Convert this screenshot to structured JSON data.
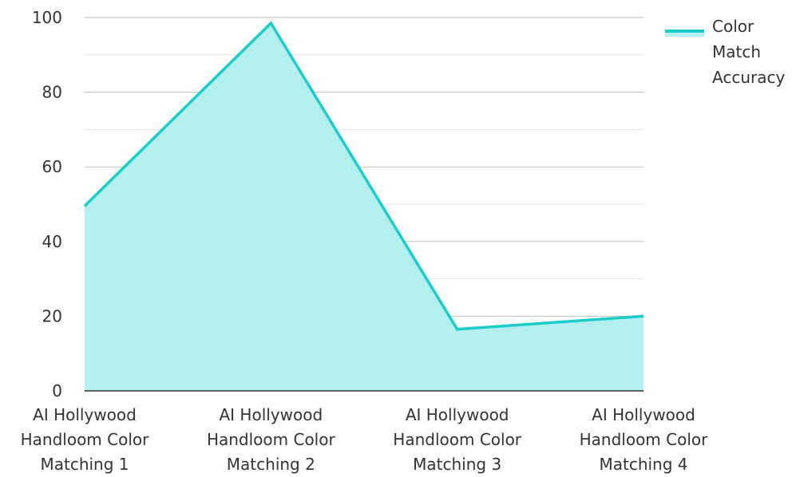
{
  "chart_data": {
    "type": "area",
    "title": "",
    "xlabel": "",
    "ylabel": "",
    "categories": [
      "AI Hollywood Handloom Color Matching 1",
      "AI Hollywood Handloom Color Matching 2",
      "AI Hollywood Handloom Color Matching 3",
      "AI Hollywood Handloom Color Matching 4"
    ],
    "category_lines": [
      [
        "AI Hollywood",
        "Handloom Color",
        "Matching 1"
      ],
      [
        "AI Hollywood",
        "Handloom Color",
        "Matching 2"
      ],
      [
        "AI Hollywood",
        "Handloom Color",
        "Matching 3"
      ],
      [
        "AI Hollywood",
        "Handloom Color",
        "Matching 4"
      ]
    ],
    "series": [
      {
        "name": "Color Match Accuracy",
        "legend_lines": [
          "Color",
          "Match",
          "Accuracy"
        ],
        "values": [
          49.5,
          98.5,
          16.5,
          20
        ],
        "line_color": "#1ACDCB",
        "fill_color": "#B2EFEE"
      }
    ],
    "ylim": [
      0,
      100
    ],
    "yticks": [
      0,
      20,
      40,
      60,
      80,
      100
    ],
    "grid": true,
    "legend_position": "top-right"
  }
}
